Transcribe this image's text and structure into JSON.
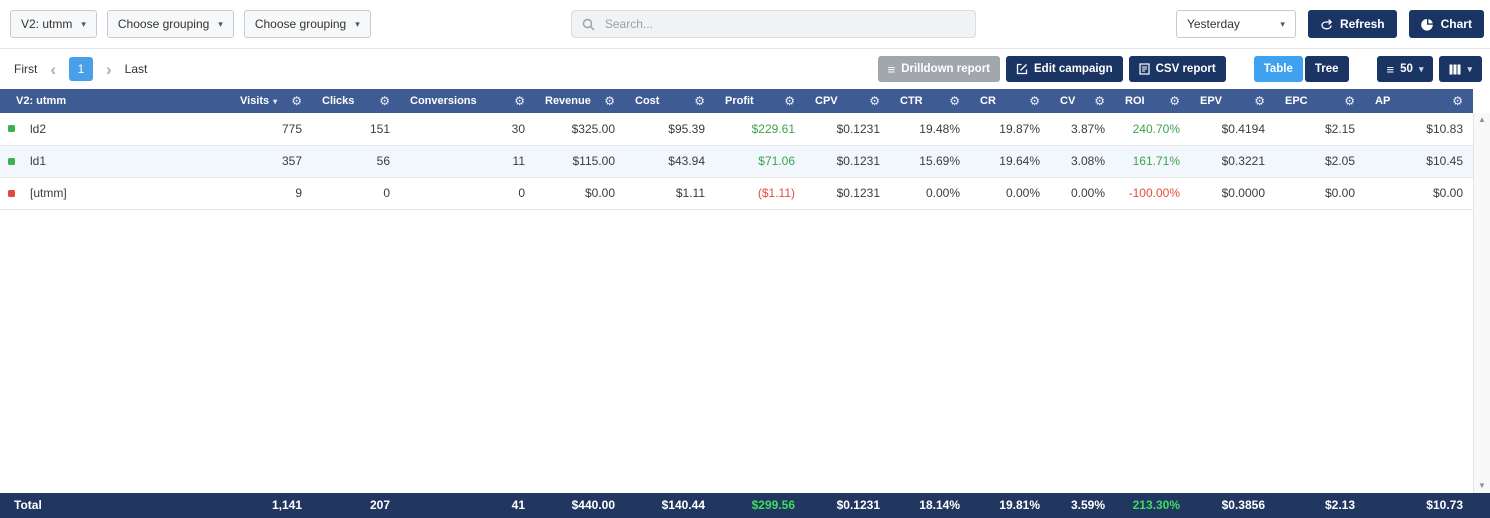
{
  "toolbar": {
    "campaign_select": {
      "value": "V2: utmm"
    },
    "grouping_selects": [
      {
        "value": "Choose grouping"
      },
      {
        "value": "Choose grouping"
      }
    ],
    "search": {
      "placeholder": "Search..."
    },
    "date_select": {
      "value": "Yesterday"
    },
    "refresh_button": "Refresh",
    "chart_button": "Chart"
  },
  "pagination": {
    "first_label": "First",
    "current_page": "1",
    "last_label": "Last"
  },
  "actions": {
    "drilldown_report": "Drilldown report",
    "edit_campaign": "Edit campaign",
    "csv_report": "CSV report",
    "view_table": "Table",
    "view_tree": "Tree",
    "rows_per_page": "50"
  },
  "table": {
    "name_column": "V2: utmm",
    "sort_column": "Visits",
    "metric_columns": [
      "Visits",
      "Clicks",
      "Conversions",
      "Revenue",
      "Cost",
      "Profit",
      "CPV",
      "CTR",
      "CR",
      "CV",
      "ROI",
      "EPV",
      "EPC",
      "AP"
    ],
    "rows": [
      {
        "status": "green",
        "name": "ld2",
        "values": [
          "775",
          "151",
          "30",
          "$325.00",
          "$95.39",
          "$229.61",
          "$0.1231",
          "19.48%",
          "19.87%",
          "3.87%",
          "240.70%",
          "$0.4194",
          "$2.15",
          "$10.83"
        ],
        "value_classes": {
          "5": "pos",
          "10": "pos"
        }
      },
      {
        "status": "green",
        "name": "ld1",
        "values": [
          "357",
          "56",
          "11",
          "$115.00",
          "$43.94",
          "$71.06",
          "$0.1231",
          "15.69%",
          "19.64%",
          "3.08%",
          "161.71%",
          "$0.3221",
          "$2.05",
          "$10.45"
        ],
        "value_classes": {
          "5": "pos",
          "10": "pos"
        }
      },
      {
        "status": "red",
        "name": "[utmm]",
        "values": [
          "9",
          "0",
          "0",
          "$0.00",
          "$1.11",
          "($1.11)",
          "$0.1231",
          "0.00%",
          "0.00%",
          "0.00%",
          "-100.00%",
          "$0.0000",
          "$0.00",
          "$0.00"
        ],
        "value_classes": {
          "5": "neg",
          "10": "neg"
        }
      }
    ],
    "total": {
      "label": "Total",
      "values": [
        "1,141",
        "207",
        "41",
        "$440.00",
        "$140.44",
        "$299.56",
        "$0.1231",
        "18.14%",
        "19.81%",
        "3.59%",
        "213.30%",
        "$0.3856",
        "$2.13",
        "$10.73"
      ],
      "value_classes": {
        "5": "pos",
        "10": "pos"
      }
    }
  },
  "icons": {
    "caret_down": "▾",
    "chevron_left": "‹",
    "chevron_right": "›",
    "gear": "⚙",
    "list": "≡",
    "hamburger": "≡",
    "sort_desc": "▾",
    "scroll_up": "▲",
    "scroll_down": "▼"
  },
  "colors": {
    "table_header_bg": "#3e5b94",
    "total_row_bg": "#223760",
    "dark_button_bg": "#1a3464",
    "active_toggle_bg": "#3fa2f0",
    "disabled_button_bg": "#a2a6ad",
    "positive_green": "#3fa24e",
    "negative_red": "#e74c3c",
    "total_positive_green": "#3ddc5f",
    "row_indicator_green": "#3cb24b",
    "row_indicator_red": "#e8473e",
    "alt_row_bg": "#f1f7fd"
  }
}
